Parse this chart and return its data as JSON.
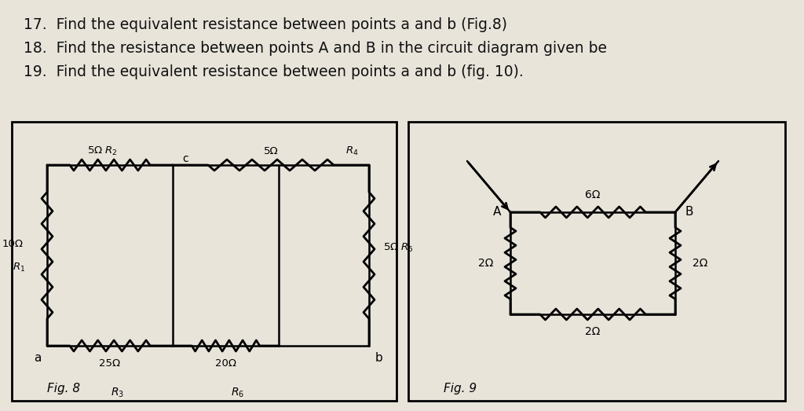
{
  "bg_color": "#e8e4da",
  "box_color": "#dedad0",
  "text_color": "#111111",
  "title_lines": [
    "17.  Find the equivalent resistance between points a and b (Fig.8)",
    "18.  Find the resistance between points A and B in the circuit diagram given be",
    "19.  Find the equivalent resistance between points a and b (fig. 10)."
  ],
  "fig8_label": "Fig. 8",
  "fig9_label": "Fig. 9"
}
